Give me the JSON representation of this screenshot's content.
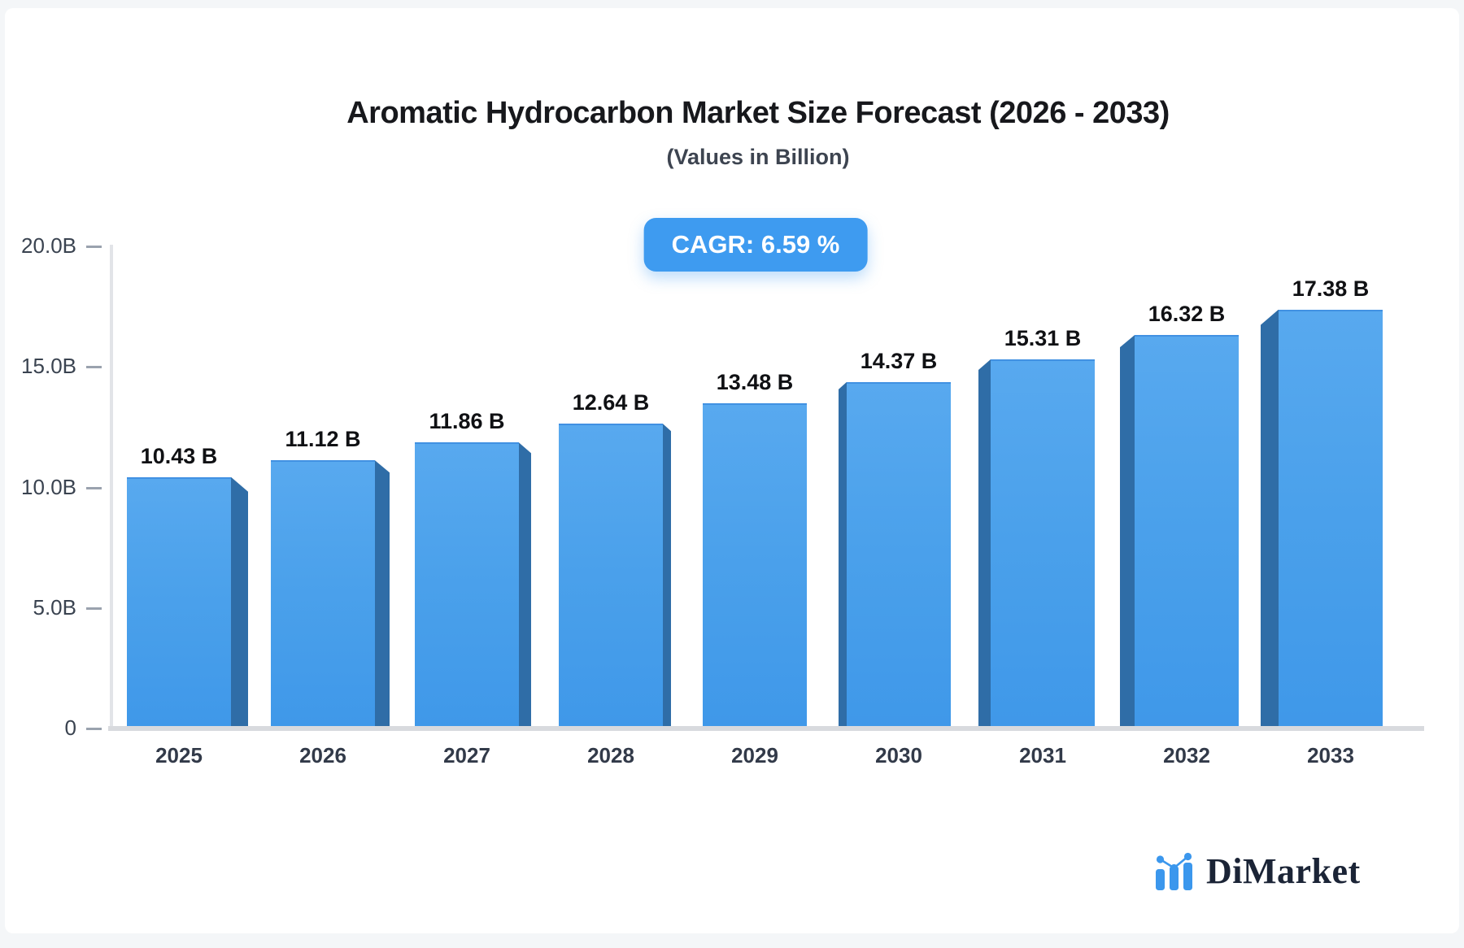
{
  "page": {
    "background_color": "#f4f6f8",
    "card_color": "#ffffff"
  },
  "header": {
    "title": "Aromatic Hydrocarbon Market Size Forecast (2026 - 2033)",
    "subtitle": "(Values in Billion)",
    "cagr_label": "CAGR: 6.59 %"
  },
  "chart_data": {
    "type": "bar",
    "title": "Aromatic Hydrocarbon Market Size Forecast (2026 - 2033)",
    "subtitle": "(Values in Billion)",
    "categories": [
      "2025",
      "2026",
      "2027",
      "2028",
      "2029",
      "2030",
      "2031",
      "2032",
      "2033"
    ],
    "values": [
      10.43,
      11.12,
      11.86,
      12.64,
      13.48,
      14.37,
      15.31,
      16.32,
      17.38
    ],
    "value_labels": [
      "10.43 B",
      "11.12 B",
      "11.86 B",
      "12.64 B",
      "13.48 B",
      "14.37 B",
      "15.31 B",
      "16.32 B",
      "17.38 B"
    ],
    "unit": "Billion",
    "xlabel": "",
    "ylabel": "",
    "ylim": [
      0,
      20
    ],
    "yticks": [
      {
        "label": "20.0B",
        "value": 20
      },
      {
        "label": "15.0B",
        "value": 15
      },
      {
        "label": "10.0B",
        "value": 10
      },
      {
        "label": "5.0B",
        "value": 5
      },
      {
        "label": "0",
        "value": 0
      }
    ],
    "grid": false,
    "legend": false,
    "style": "3d-perspective-bars",
    "colors": {
      "bar_face": "#4aa0ea",
      "bar_face_top": "#58a9ef",
      "bar_face_bottom": "#3f98e9",
      "bar_side": "#2f6da7",
      "axis_line": "#e2e4e8",
      "baseline": "#d8dade",
      "tick_label": "#3a4350",
      "value_label": "#101114"
    }
  },
  "badge": {
    "text": "CAGR: 6.59 %",
    "background_color": "#3e9bf0",
    "text_color": "#ffffff"
  },
  "branding": {
    "name": "DiMarket",
    "icon": "bar-chart-logo-icon",
    "icon_color": "#3b97ed",
    "text_color": "#1b2436"
  }
}
